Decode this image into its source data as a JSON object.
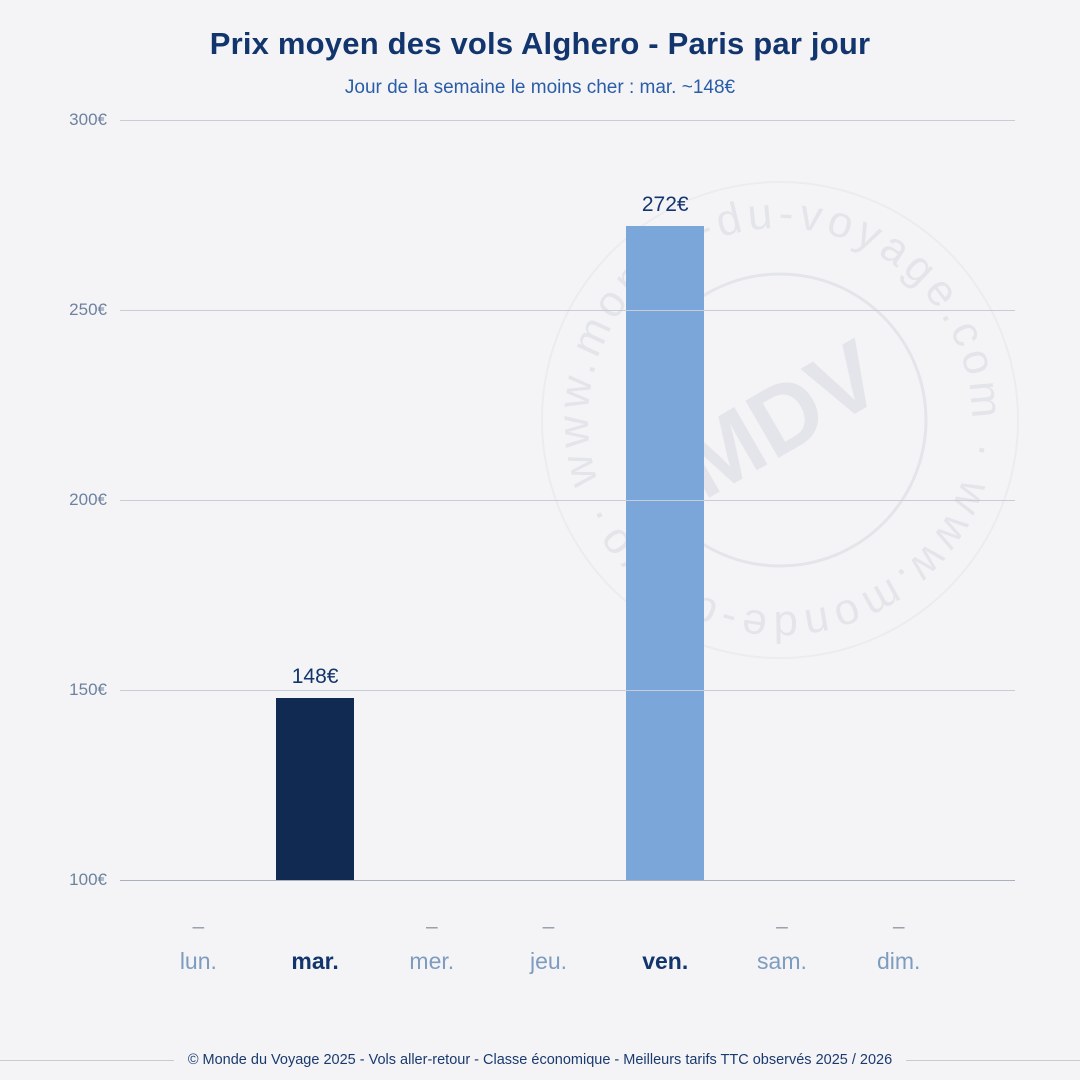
{
  "colors": {
    "background": "#f4f4f6",
    "title": "#13356d",
    "subtitle": "#2a5da8",
    "axis_label": "#6e829f",
    "gridline": "#c8ccd8",
    "bar_dark": "#112a52",
    "bar_light": "#7aa6d9",
    "day_inactive": "#7e9cbf",
    "day_active": "#13356d",
    "watermark": "#e2e3e8",
    "footer_text": "#1a3a6e"
  },
  "chart_data": {
    "type": "bar",
    "title": "Prix moyen des vols Alghero - Paris par jour",
    "subtitle": "Jour de la semaine le moins cher : mar. ~148€",
    "categories": [
      "lun.",
      "mar.",
      "mer.",
      "jeu.",
      "ven.",
      "sam.",
      "dim."
    ],
    "values": [
      null,
      148,
      null,
      null,
      272,
      null,
      null
    ],
    "value_labels": [
      null,
      "148€",
      null,
      null,
      "272€",
      null,
      null
    ],
    "bar_colors": [
      null,
      "#112a52",
      null,
      null,
      "#7aa6d9",
      null,
      null
    ],
    "highlighted_categories": [
      "mar.",
      "ven."
    ],
    "no_data_marker": "–",
    "y_unit": "€",
    "yticks": [
      300,
      250,
      200,
      150,
      100
    ],
    "ytick_labels": [
      "300€",
      "250€",
      "200€",
      "150€",
      "100€"
    ],
    "ylim": [
      100,
      300
    ],
    "grid": true,
    "legend": false,
    "xlabel": "",
    "ylabel": ""
  },
  "watermark": {
    "circle_text": "· www.monde-du-voyage.com · www.monde-du-voyage",
    "center_text": "MDV"
  },
  "footer": {
    "text": "© Monde du Voyage 2025 - Vols aller-retour - Classe économique - Meilleurs tarifs TTC observés 2025 / 2026"
  }
}
